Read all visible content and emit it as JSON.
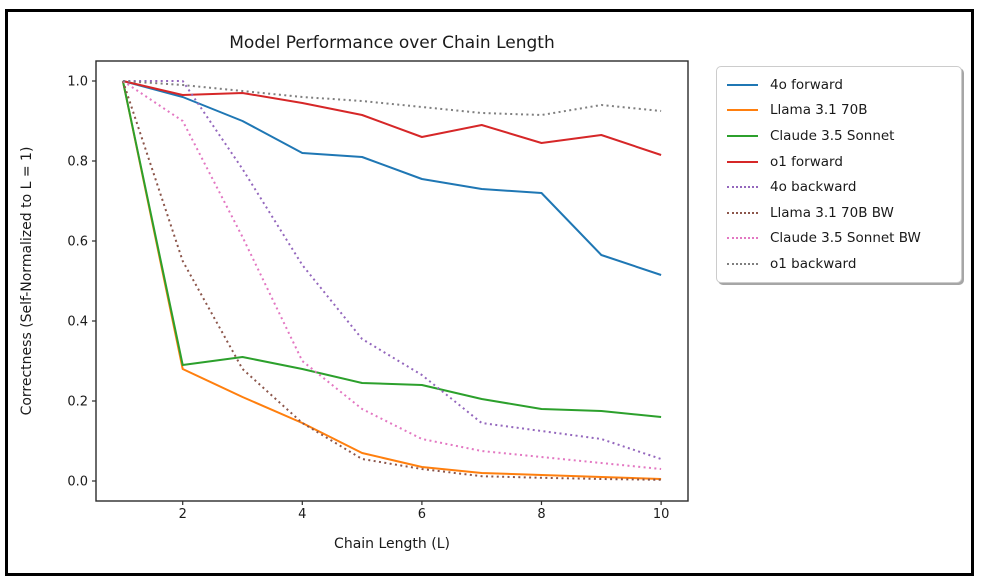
{
  "figure": {
    "background": "#ffffff",
    "frame_color": "#000000",
    "spine_color": "#2b2b2b",
    "text_color": "#1a1a1a",
    "legend_border_color": "#cccccc"
  },
  "chart_data": {
    "type": "line",
    "title": "Model Performance over Chain Length",
    "xlabel": "Chain Length (L)",
    "ylabel": "Correctness (Self-Normalized to L = 1)",
    "grid": false,
    "legend_position": "outside-right",
    "x": [
      1,
      2,
      3,
      4,
      5,
      6,
      7,
      8,
      9,
      10
    ],
    "xticks": [
      2,
      4,
      6,
      8,
      10
    ],
    "yticks": [
      "0.0",
      "0.2",
      "0.4",
      "0.6",
      "0.8",
      "1.0"
    ],
    "xlim": [
      0.55,
      10.45
    ],
    "ylim": [
      -0.05,
      1.05
    ],
    "series": [
      {
        "name": "4o forward",
        "color": "#1f77b4",
        "style": "solid",
        "values": [
          1.0,
          0.96,
          0.9,
          0.82,
          0.81,
          0.755,
          0.73,
          0.72,
          0.565,
          0.515
        ]
      },
      {
        "name": "Llama 3.1 70B",
        "color": "#ff7f0e",
        "style": "solid",
        "values": [
          1.0,
          0.28,
          0.21,
          0.145,
          0.07,
          0.035,
          0.02,
          0.015,
          0.01,
          0.005
        ]
      },
      {
        "name": "Claude 3.5 Sonnet",
        "color": "#2ca02c",
        "style": "solid",
        "values": [
          1.0,
          0.29,
          0.31,
          0.28,
          0.245,
          0.24,
          0.205,
          0.18,
          0.175,
          0.16
        ]
      },
      {
        "name": "o1 forward",
        "color": "#d62728",
        "style": "solid",
        "values": [
          1.0,
          0.965,
          0.97,
          0.945,
          0.915,
          0.86,
          0.89,
          0.845,
          0.865,
          0.815
        ]
      },
      {
        "name": "4o backward",
        "color": "#9467bd",
        "style": "dotted",
        "values": [
          1.0,
          1.0,
          0.78,
          0.54,
          0.355,
          0.265,
          0.145,
          0.125,
          0.105,
          0.055
        ]
      },
      {
        "name": "Llama 3.1 70B BW",
        "color": "#8c564b",
        "style": "dotted",
        "values": [
          1.0,
          0.55,
          0.28,
          0.145,
          0.055,
          0.03,
          0.012,
          0.008,
          0.005,
          0.003
        ]
      },
      {
        "name": "Claude 3.5 Sonnet BW",
        "color": "#e377c2",
        "style": "dotted",
        "values": [
          1.0,
          0.9,
          0.61,
          0.3,
          0.18,
          0.105,
          0.075,
          0.06,
          0.045,
          0.03
        ]
      },
      {
        "name": "o1 backward",
        "color": "#7f7f7f",
        "style": "dotted",
        "values": [
          1.0,
          0.99,
          0.975,
          0.96,
          0.95,
          0.935,
          0.92,
          0.915,
          0.94,
          0.925
        ]
      }
    ]
  }
}
